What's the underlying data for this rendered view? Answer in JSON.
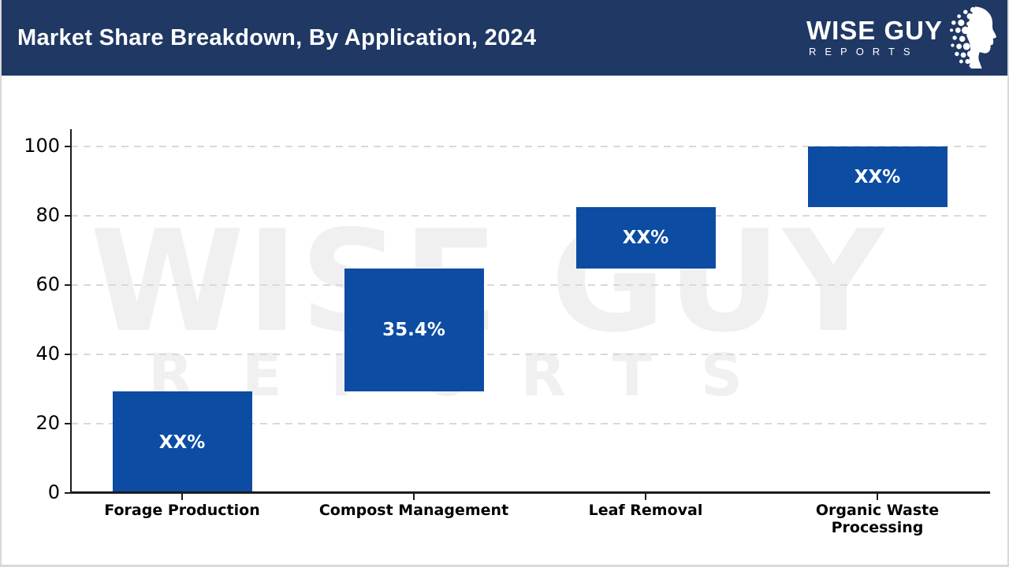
{
  "header": {
    "title": "Market Share Breakdown, By Application, 2024",
    "bg_color": "#1f3864",
    "logo": {
      "name": "Wise Guy Reports",
      "line1": "WISE GUY",
      "line2": "REPORTS"
    }
  },
  "watermark": {
    "line1": "WISE GUY",
    "line2": "REPORTS"
  },
  "chart_data": {
    "type": "bar",
    "subtype": "floating-waterfall",
    "title": "Market Share Breakdown, By Application, 2024",
    "xlabel": "",
    "ylabel": "",
    "categories": [
      "Forage Production",
      "Compost Management",
      "Leaf Removal",
      "Organic Waste Processing"
    ],
    "category_lines": [
      [
        "Forage Production"
      ],
      [
        "Compost Management"
      ],
      [
        "Leaf Removal"
      ],
      [
        "Organic Waste",
        "Processing"
      ]
    ],
    "segments": [
      {
        "category": "Forage Production",
        "start": 0,
        "end": 29.3,
        "label": "XX%"
      },
      {
        "category": "Compost Management",
        "start": 29.3,
        "end": 64.7,
        "label": "35.4%",
        "value": 35.4
      },
      {
        "category": "Leaf Removal",
        "start": 64.7,
        "end": 82.5,
        "label": "XX%"
      },
      {
        "category": "Organic Waste Processing",
        "start": 82.5,
        "end": 100,
        "label": "XX%"
      }
    ],
    "y_ticks": [
      0,
      20,
      40,
      60,
      80,
      100
    ],
    "ylim": [
      0,
      104
    ],
    "grid": "dashed-horizontal",
    "legend": "none",
    "colors": {
      "bar": "#0c4ca3",
      "bar_label": "#ffffff",
      "grid": "#d9d9d9",
      "axis": "#1c1c1c",
      "tick_label": "#000000",
      "header_bg": "#1f3864",
      "watermark": "#f0f0f1"
    }
  }
}
